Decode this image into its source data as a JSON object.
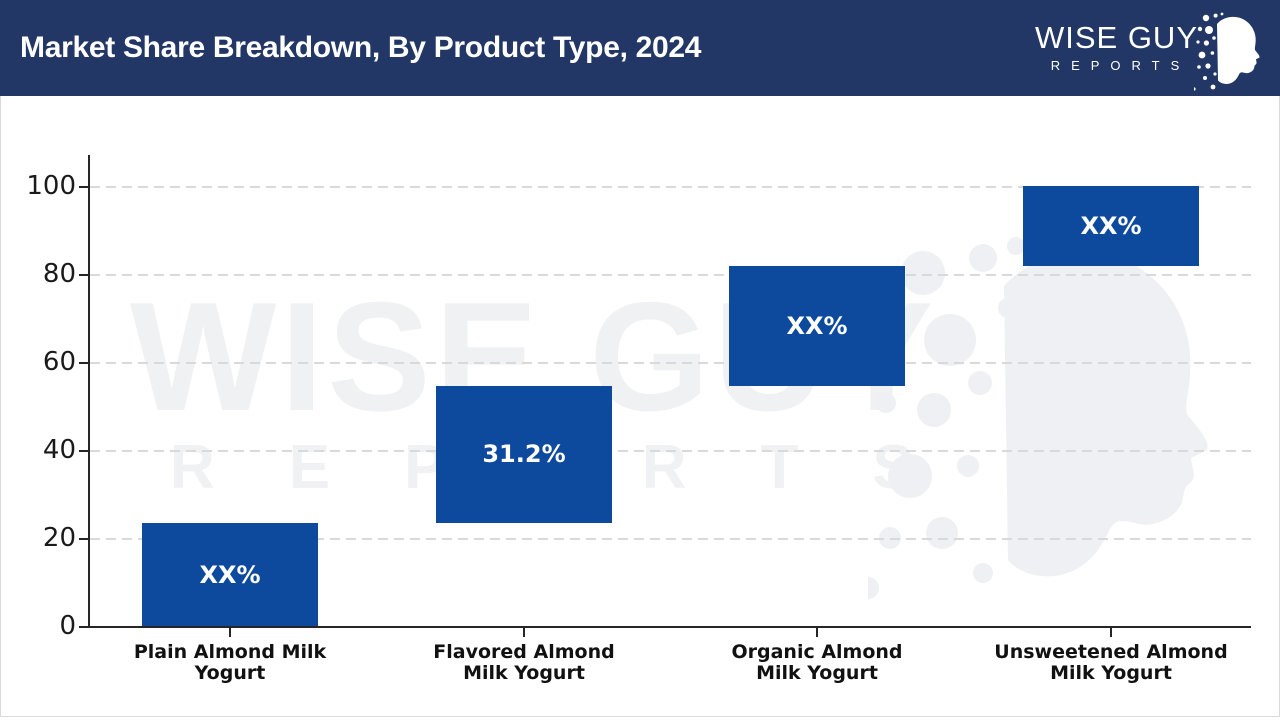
{
  "header": {
    "title": "Market Share Breakdown, By Product Type, 2024",
    "brand": {
      "name_top": "WISE GUY",
      "name_bottom": "REPORTS"
    },
    "header_color": "#223766"
  },
  "watermark": {
    "big_text": "WISE GUY",
    "small_text": "REPORTS"
  },
  "chart_data": {
    "type": "bar",
    "subtype": "floating-waterfall",
    "title": "Market Share Breakdown, By Product Type, 2024",
    "unit": "percent market share",
    "categories": [
      [
        "Plain Almond Milk",
        "Yogurt"
      ],
      [
        "Flavored Almond",
        "Milk Yogurt"
      ],
      [
        "Organic Almond",
        "Milk Yogurt"
      ],
      [
        "Unsweetened Almond",
        "Milk Yogurt"
      ]
    ],
    "segments": [
      {
        "category": "Plain Almond Milk Yogurt",
        "start": 0,
        "end": 23.4,
        "share": 23.4,
        "label": "XX%"
      },
      {
        "category": "Flavored Almond Milk Yogurt",
        "start": 23.4,
        "end": 54.6,
        "share": 31.2,
        "label": "31.2%"
      },
      {
        "category": "Organic Almond Milk Yogurt",
        "start": 54.6,
        "end": 81.8,
        "share": 27.2,
        "label": "XX%"
      },
      {
        "category": "Unsweetened Almond Milk Yogurt",
        "start": 81.8,
        "end": 100,
        "share": 18.2,
        "label": "XX%"
      }
    ],
    "ylim": [
      0,
      100
    ],
    "yticks": [
      0,
      20,
      40,
      60,
      80,
      100
    ],
    "xlabel": "",
    "ylabel": "",
    "grid": {
      "horizontal": true,
      "vertical": false,
      "style": "dashed"
    },
    "legend": {
      "visible": false
    },
    "colors": {
      "bar": "#0d4a9e",
      "grid": "#d9d9d9",
      "axis": "#262626",
      "watermark": "#f0f1f3",
      "bar_label_text": "#ffffff"
    }
  }
}
